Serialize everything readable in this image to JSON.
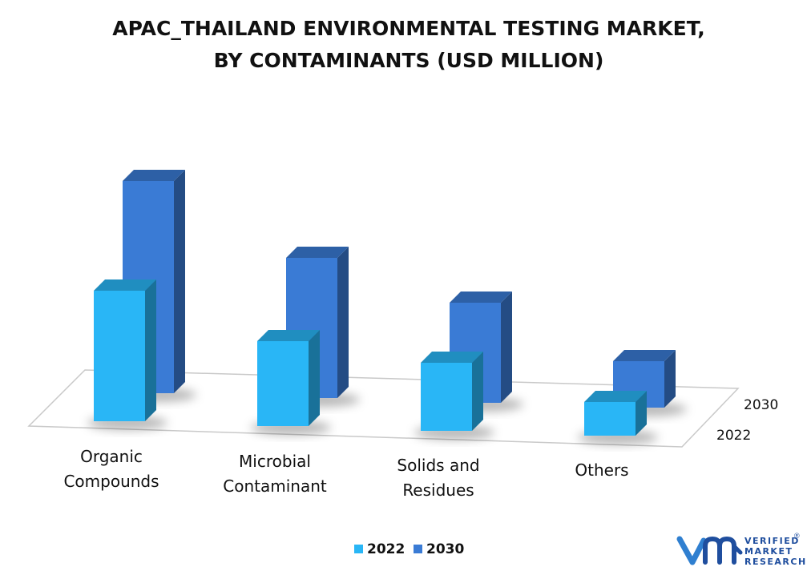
{
  "chart_data": {
    "type": "bar",
    "title_lines": [
      "APAC_THAILAND ENVIRONMENTAL TESTING MARKET,",
      "BY CONTAMINANTS (USD MILLION)"
    ],
    "categories": [
      [
        "Organic",
        "Compounds"
      ],
      [
        "Microbial",
        "Contaminant"
      ],
      [
        "Solids and",
        "Residues"
      ],
      [
        "Others"
      ]
    ],
    "series": [
      {
        "name": "2022",
        "values": [
          163,
          106,
          85,
          42
        ],
        "color": "#29b6f6"
      },
      {
        "name": "2030",
        "values": [
          265,
          175,
          125,
          58
        ],
        "color": "#3a7bd5"
      }
    ],
    "depth_labels": [
      "2030",
      "2022"
    ],
    "legend": {
      "position": "bottom",
      "items": [
        "2022",
        "2030"
      ]
    },
    "grid": false,
    "ylim": [
      0,
      300
    ]
  },
  "logo": {
    "mark": "vmr",
    "lines": [
      "VERIFIED",
      "MARKET",
      "RESEARCH"
    ],
    "registered": "®"
  }
}
